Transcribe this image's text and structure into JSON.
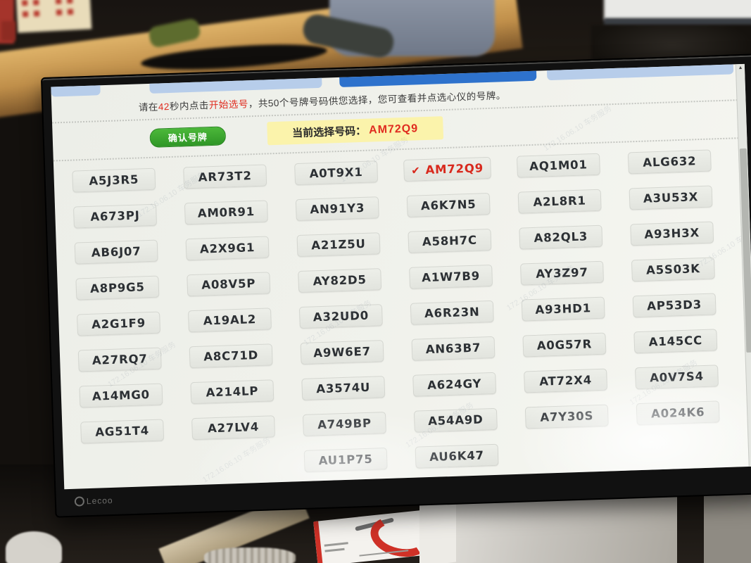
{
  "monitor": {
    "brand": "Lecoo"
  },
  "screen": {
    "notice": {
      "prefix": "请在",
      "seconds": "42",
      "mid": "秒内点击",
      "action": "开始选号",
      "suffix": "，共50个号牌号码供您选择，您可查看并点选心仪的号牌。"
    },
    "confirm_button_label": "确认号牌",
    "selection_banner": {
      "label": "当前选择号码：",
      "value": "AM72Q9"
    },
    "selected_plate": "AM72Q9",
    "check_icon": "✔",
    "scroll_up_icon": "▲",
    "plates": [
      "A5J3R5",
      "AR73T2",
      "A0T9X1",
      "AM72Q9",
      "AQ1M01",
      "ALG632",
      "A673PJ",
      "AM0R91",
      "AN91Y3",
      "A6K7N5",
      "A2L8R1",
      "A3U53X",
      "AB6J07",
      "A2X9G1",
      "A21Z5U",
      "A58H7C",
      "A82QL3",
      "A93H3X",
      "A8P9G5",
      "A08V5P",
      "AY82D5",
      "A1W7B9",
      "AY3Z97",
      "A5S03K",
      "A2G1F9",
      "A19AL2",
      "A32UD0",
      "A6R23N",
      "A93HD1",
      "AP53D3",
      "A27RQ7",
      "A8C71D",
      "A9W6E7",
      "AN63B7",
      "A0G57R",
      "A145CC",
      "A14MG0",
      "A214LP",
      "A3574U",
      "A624GY",
      "AT72X4",
      "A0V7S4",
      "AG51T4",
      "A27LV4",
      "A749BP",
      "A54A9D",
      "A7Y30S",
      "A024K6",
      "AU1P75",
      "AU6K47"
    ],
    "colors": {
      "accent_red": "#e02b1f",
      "confirm_green": "#3aa832",
      "banner_yellow": "#fbf3ab",
      "stepper_active_blue": "#2e72cc",
      "stepper_light_blue": "#b7cdea"
    }
  },
  "watermark_text": "172.16.06.10 车务服务"
}
